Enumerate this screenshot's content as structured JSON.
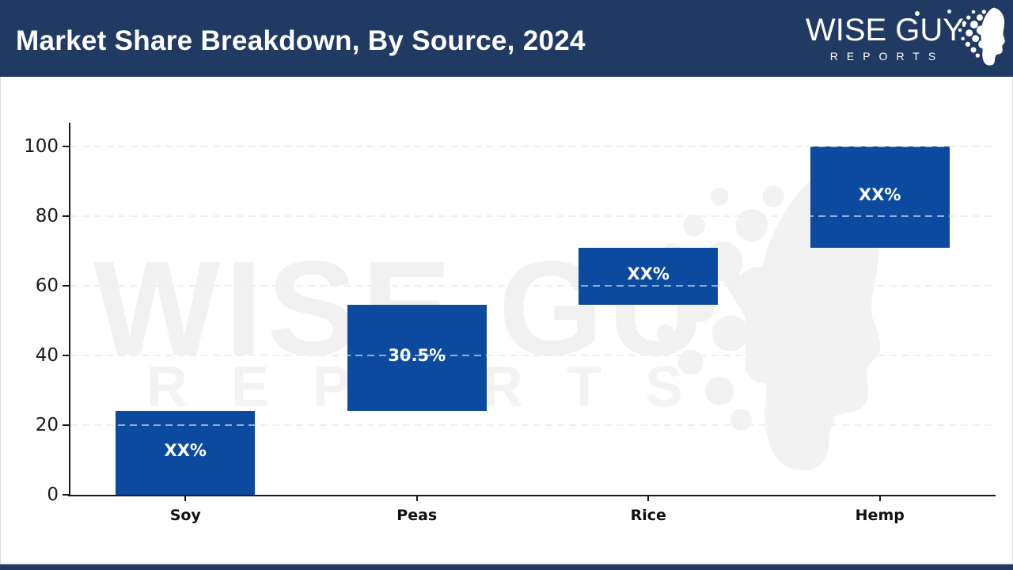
{
  "header": {
    "title": "Market Share Breakdown, By Source, 2024",
    "logo": {
      "wordmark": "WISE GUY",
      "subtext": "REPORTS"
    }
  },
  "watermark": {
    "wordmark": "WISE GUY",
    "subtext": "REPORTS"
  },
  "colors": {
    "header_bg": "#213a63",
    "footer_bg": "#213a63",
    "bar": "#0b4a9e",
    "bar_label": "#ffffff",
    "axis": "#1a1a1a",
    "tick_label": "#1a1a1a",
    "gridline": "#dcdcdc",
    "watermark": "#f1f1f1"
  },
  "chart_data": {
    "type": "bar",
    "subtype": "floating-segment-waterfall",
    "title": "Market Share Breakdown, By Source, 2024",
    "categories": [
      "Soy",
      "Peas",
      "Rice",
      "Hemp"
    ],
    "segments": [
      {
        "category": "Soy",
        "start": 0,
        "end": 24,
        "value": 24,
        "label": "XX%"
      },
      {
        "category": "Peas",
        "start": 24,
        "end": 54.5,
        "value": 30.5,
        "label": "30.5%"
      },
      {
        "category": "Rice",
        "start": 54.5,
        "end": 71,
        "value": 16.5,
        "label": "XX%"
      },
      {
        "category": "Hemp",
        "start": 71,
        "end": 100,
        "value": 29,
        "label": "XX%"
      }
    ],
    "ylim": [
      0,
      106
    ],
    "yticks": [
      0,
      20,
      40,
      60,
      80,
      100
    ],
    "xlabel": "",
    "ylabel": "",
    "units": "percent",
    "grid": "horizontal-dashed",
    "legend": "none"
  }
}
